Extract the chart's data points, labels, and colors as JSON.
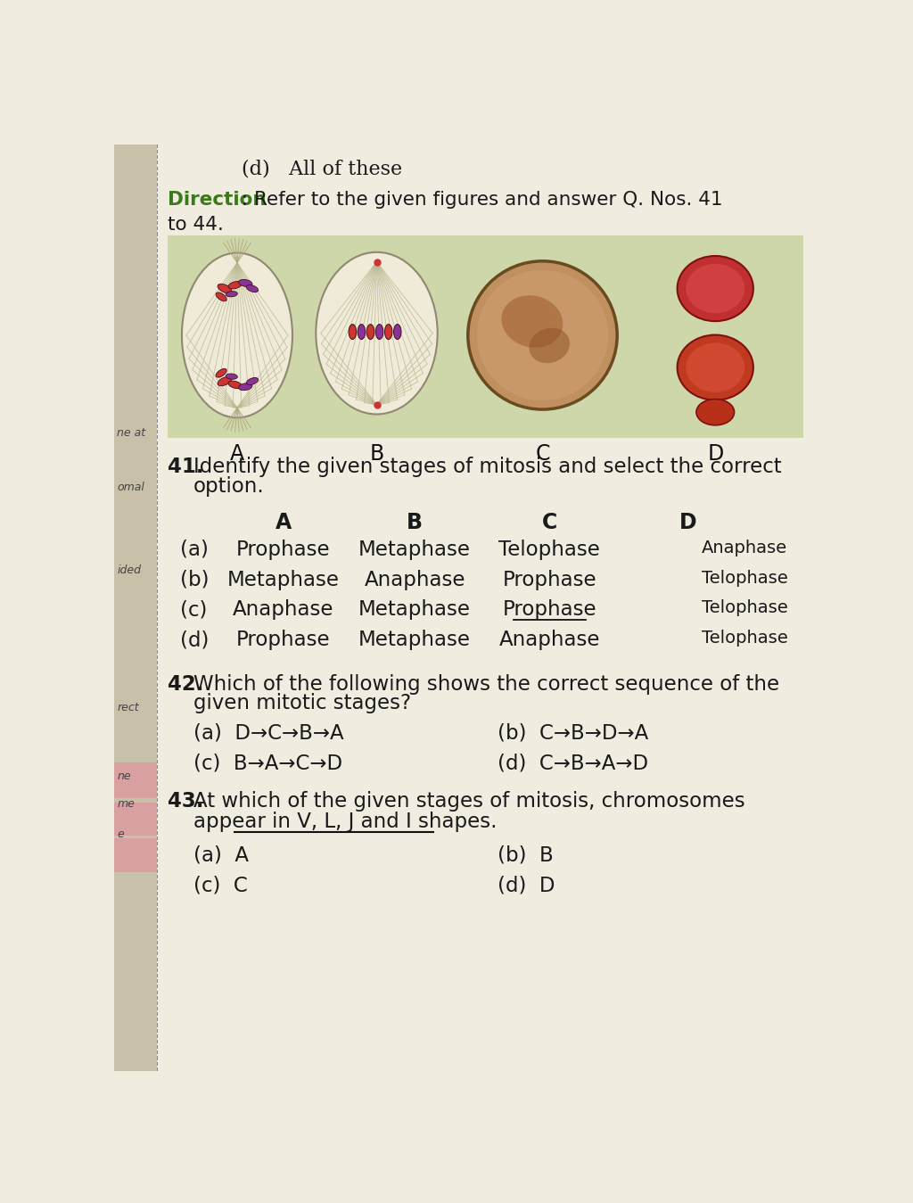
{
  "page_bg": "#f0ece0",
  "sidebar_bg": "#c8c0a8",
  "pink_sidebar": "#d8a0a0",
  "green_color": "#3a7a1a",
  "body_color": "#1a1a1a",
  "line_d_top": "(d)   All of these",
  "direction_label": "Direction",
  "direction_text": " : Refer to the given figures and answer Q. Nos. 41",
  "direction_text2": "to 44.",
  "q41_num": "41.",
  "q41_text": "Identify the given stages of mitosis and select the correct",
  "q41_text2": "option.",
  "q41_header_A": "A",
  "q41_header_B": "B",
  "q41_header_C": "C",
  "q41_header_D": "D",
  "q41_a": [
    "(a)",
    "Prophase",
    "Metaphase",
    "Telophase",
    "Anaphase"
  ],
  "q41_b": [
    "(b)",
    "Metaphase",
    "Anaphase",
    "Prophase",
    "Telophase"
  ],
  "q41_c": [
    "(c)",
    "Anaphase",
    "Metaphase",
    "Prophase",
    "Telophase"
  ],
  "q41_d": [
    "(d)",
    "Prophase",
    "Metaphase",
    "Anaphase",
    "Telophase"
  ],
  "q42_num": "42.",
  "q42_text": "Which of the following shows the correct sequence of the",
  "q42_text2": "given mitotic stages?",
  "q42_a": "(a)  D→C→B→A",
  "q42_b": "(b)  C→B→D→A",
  "q42_c": "(c)  B→A→C→D",
  "q42_d": "(d)  C→B→A→D",
  "q43_num": "43.",
  "q43_text": "At which of the given stages of mitosis, chromosomes",
  "q43_text2": "appear in V, L, J and I shapes.",
  "q43_a": "(a)  A",
  "q43_b": "(b)  B",
  "q43_c": "(c)  C",
  "q43_d": "(d)  D",
  "sidebar_items": [
    [
      "ne at",
      420
    ],
    [
      "omal",
      500
    ],
    [
      "ided",
      620
    ],
    [
      "rect",
      820
    ],
    [
      "ne",
      920
    ],
    [
      "me",
      960
    ],
    [
      "e",
      1005
    ]
  ]
}
